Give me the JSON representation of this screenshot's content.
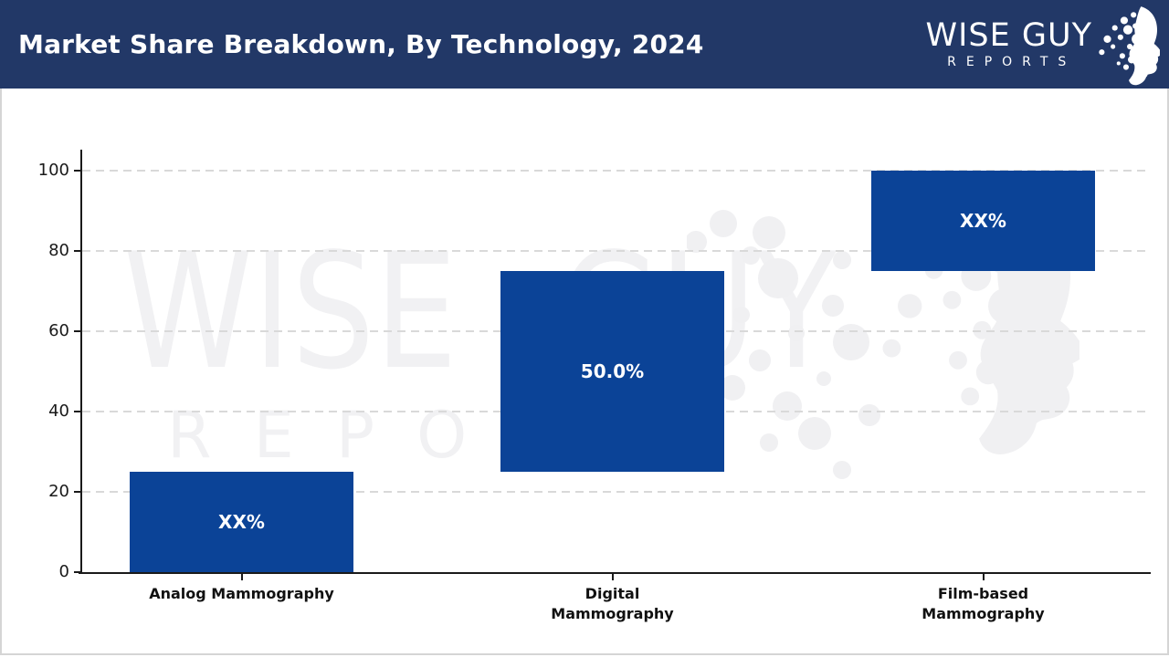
{
  "header": {
    "title": "Market Share Breakdown, By Technology, 2024",
    "logo_line1": "WISE GUY",
    "logo_line2": "REPORTS"
  },
  "watermark": {
    "word1": "WISE",
    "word2": "GUY",
    "row2": "REPORTS"
  },
  "chart_data": {
    "type": "bar",
    "subtype": "floating-range-bars (waterfall style)",
    "title": "Market Share Breakdown, By Technology, 2024",
    "categories": [
      "Analog Mammography",
      "Digital Mammography",
      "Film-based Mammography"
    ],
    "category_label_lines": [
      [
        "Analog Mammography"
      ],
      [
        "Digital",
        "Mammography"
      ],
      [
        "Film-based",
        "Mammography"
      ]
    ],
    "series": [
      {
        "name": "Market Share (%)",
        "ranges": [
          [
            0,
            25
          ],
          [
            25,
            75
          ],
          [
            75,
            100
          ]
        ],
        "labels": [
          "XX%",
          "50.0%",
          "XX%"
        ]
      }
    ],
    "yticks": [
      0,
      20,
      40,
      60,
      80,
      100
    ],
    "ylim": [
      0,
      105
    ],
    "xlabel": "",
    "ylabel": "",
    "grid": "horizontal-dashed",
    "legend": "none",
    "bar_color": "#0b4397",
    "bar_label_color": "#ffffff",
    "grid_color": "#d9d9d9",
    "axis_color": "#1a1a1a",
    "header_color": "#223867"
  }
}
